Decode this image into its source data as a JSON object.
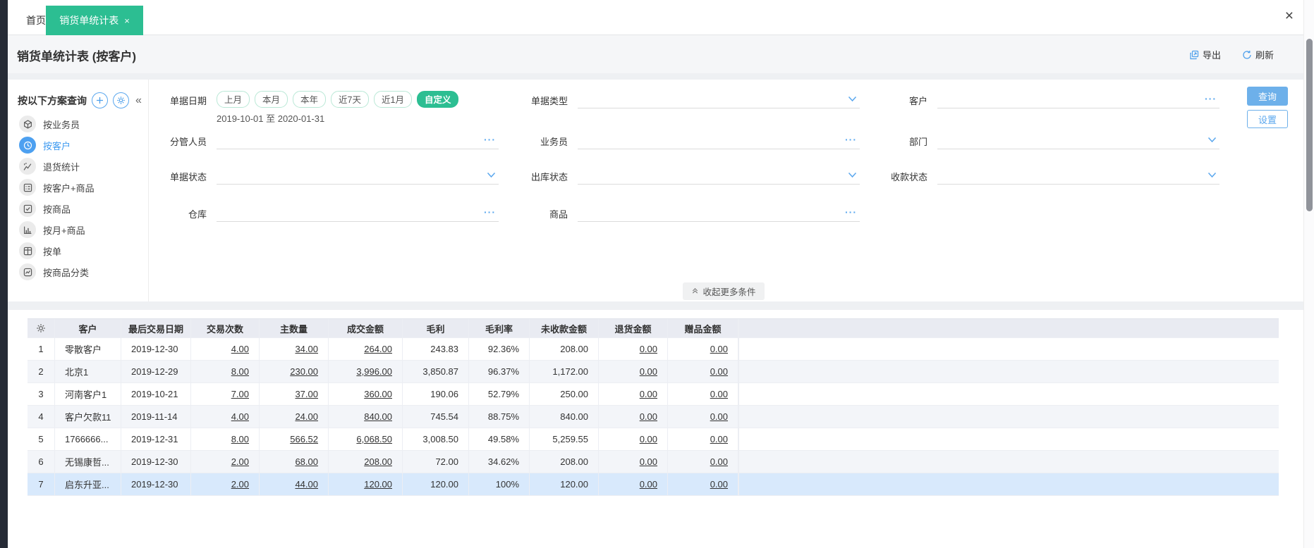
{
  "tabs": {
    "home": "首页",
    "active": "销货单统计表",
    "close": "×"
  },
  "header": {
    "title": "销货单统计表 (按客户)",
    "export_label": "导出",
    "refresh_label": "刷新",
    "accent_blue": "#4d9feb",
    "accent_green": "#2cbe92",
    "window_close": "×"
  },
  "sidebar": {
    "title": "按以下方案查询",
    "items": [
      {
        "label": "按业务员",
        "icon": "cube",
        "active": false
      },
      {
        "label": "按客户",
        "icon": "clock",
        "active": true
      },
      {
        "label": "退货统计",
        "icon": "trend",
        "active": false
      },
      {
        "label": "按客户+商品",
        "icon": "checklist",
        "active": false
      },
      {
        "label": "按商品",
        "icon": "box",
        "active": false
      },
      {
        "label": "按月+商品",
        "icon": "bars",
        "active": false
      },
      {
        "label": "按单",
        "icon": "grid",
        "active": false
      },
      {
        "label": "按商品分类",
        "icon": "chart",
        "active": false
      }
    ]
  },
  "filters": {
    "query_label": "查询",
    "settings_label": "设置",
    "collapse_label": "收起更多条件",
    "date_presets": [
      "上月",
      "本月",
      "本年",
      "近7天",
      "近1月",
      "自定义"
    ],
    "active_preset": "自定义",
    "date_range": "2019-10-01 至 2020-01-31",
    "fields": [
      {
        "label": "单据日期",
        "type": "date",
        "name": "doc-date"
      },
      {
        "label": "单据类型",
        "type": "select",
        "name": "doc-type"
      },
      {
        "label": "客户",
        "type": "picker",
        "name": "customer"
      },
      {
        "label": "分管人员",
        "type": "picker",
        "name": "manager"
      },
      {
        "label": "业务员",
        "type": "picker",
        "name": "salesman"
      },
      {
        "label": "部门",
        "type": "select",
        "name": "department"
      },
      {
        "label": "单据状态",
        "type": "select",
        "name": "doc-status"
      },
      {
        "label": "出库状态",
        "type": "select",
        "name": "outbound-status"
      },
      {
        "label": "收款状态",
        "type": "select",
        "name": "payment-status"
      },
      {
        "label": "仓库",
        "type": "picker",
        "name": "warehouse"
      },
      {
        "label": "商品",
        "type": "picker",
        "name": "product"
      }
    ]
  },
  "table": {
    "columns": [
      "",
      "客户",
      "最后交易日期",
      "交易次数",
      "主数量",
      "成交金额",
      "毛利",
      "毛利率",
      "未收款金额",
      "退货金额",
      "赠品金额"
    ],
    "selected_row": 7,
    "rows": [
      [
        "1",
        "零散客户",
        "2019-12-30",
        "4.00",
        "34.00",
        "264.00",
        "243.83",
        "92.36%",
        "208.00",
        "0.00",
        "0.00"
      ],
      [
        "2",
        "北京1",
        "2019-12-29",
        "8.00",
        "230.00",
        "3,996.00",
        "3,850.87",
        "96.37%",
        "1,172.00",
        "0.00",
        "0.00"
      ],
      [
        "3",
        "河南客户1",
        "2019-10-21",
        "7.00",
        "37.00",
        "360.00",
        "190.06",
        "52.79%",
        "250.00",
        "0.00",
        "0.00"
      ],
      [
        "4",
        "客户欠款11",
        "2019-11-14",
        "4.00",
        "24.00",
        "840.00",
        "745.54",
        "88.75%",
        "840.00",
        "0.00",
        "0.00"
      ],
      [
        "5",
        "1766666...",
        "2019-12-31",
        "8.00",
        "566.52",
        "6,068.50",
        "3,008.50",
        "49.58%",
        "5,259.55",
        "0.00",
        "0.00"
      ],
      [
        "6",
        "无锡康哲...",
        "2019-12-30",
        "2.00",
        "68.00",
        "208.00",
        "72.00",
        "34.62%",
        "208.00",
        "0.00",
        "0.00"
      ],
      [
        "7",
        "启东升亚...",
        "2019-12-30",
        "2.00",
        "44.00",
        "120.00",
        "120.00",
        "100%",
        "120.00",
        "0.00",
        "0.00"
      ]
    ]
  }
}
